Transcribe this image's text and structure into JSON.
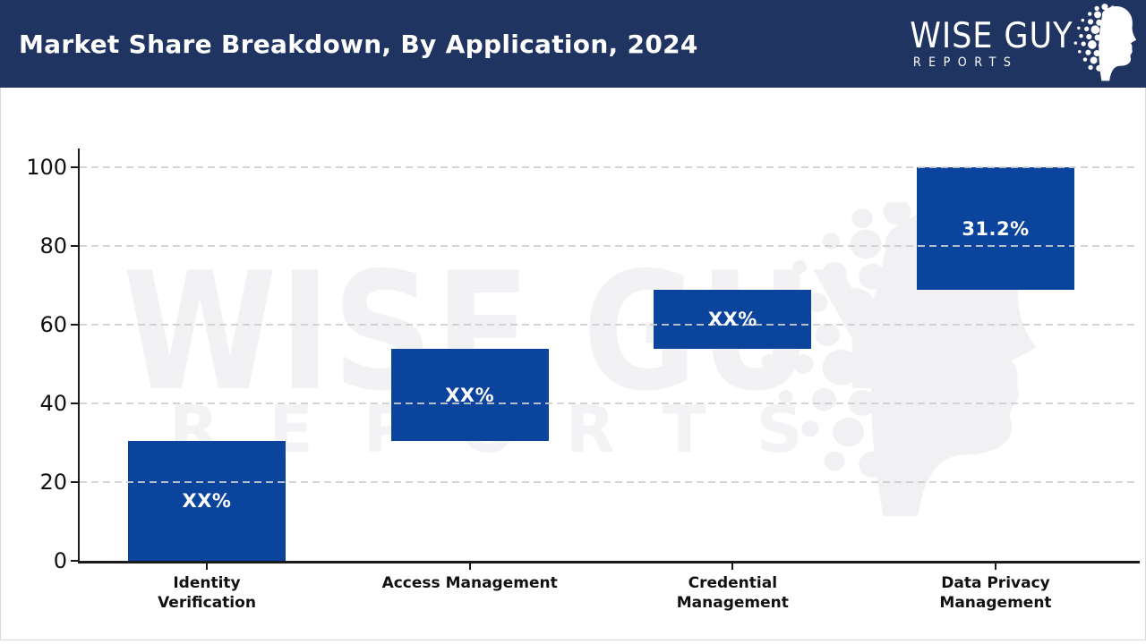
{
  "header": {
    "title": "Market Share Breakdown, By Application, 2024",
    "logo": {
      "brand_line1": "WISE GUY",
      "brand_line2": "REPORTS"
    }
  },
  "watermark": {
    "line1": "WISE GUY",
    "line2": "REPORTS"
  },
  "chart_data": {
    "type": "bar",
    "subtype": "floating-waterfall",
    "title": "Market Share Breakdown, By Application, 2024",
    "categories": [
      "Identity\nVerification",
      "Access Management",
      "Credential\nManagement",
      "Data Privacy\nManagement"
    ],
    "bars": [
      {
        "category": "Identity Verification",
        "start": 0,
        "end": 30.4,
        "value": 30.4,
        "value_label": "XX%"
      },
      {
        "category": "Access Management",
        "start": 30.4,
        "end": 53.8,
        "value": 23.4,
        "value_label": "XX%"
      },
      {
        "category": "Credential Management",
        "start": 53.8,
        "end": 68.8,
        "value": 15.0,
        "value_label": "XX%"
      },
      {
        "category": "Data Privacy Management",
        "start": 68.8,
        "end": 100,
        "value": 31.2,
        "value_label": "31.2%"
      }
    ],
    "yticks": [
      0,
      20,
      40,
      60,
      80,
      100
    ],
    "ylim": [
      0,
      100
    ],
    "grid": "horizontal-dashed",
    "legend": "none",
    "xlabel": "",
    "ylabel": ""
  },
  "colors": {
    "header_bg": "#203461",
    "bar": "#0b449c",
    "grid": "#d0d0d0",
    "axis": "#1a1a1a",
    "watermark": "#f2f2f4",
    "title_text": "#ffffff",
    "bar_label_text": "#ffffff"
  }
}
